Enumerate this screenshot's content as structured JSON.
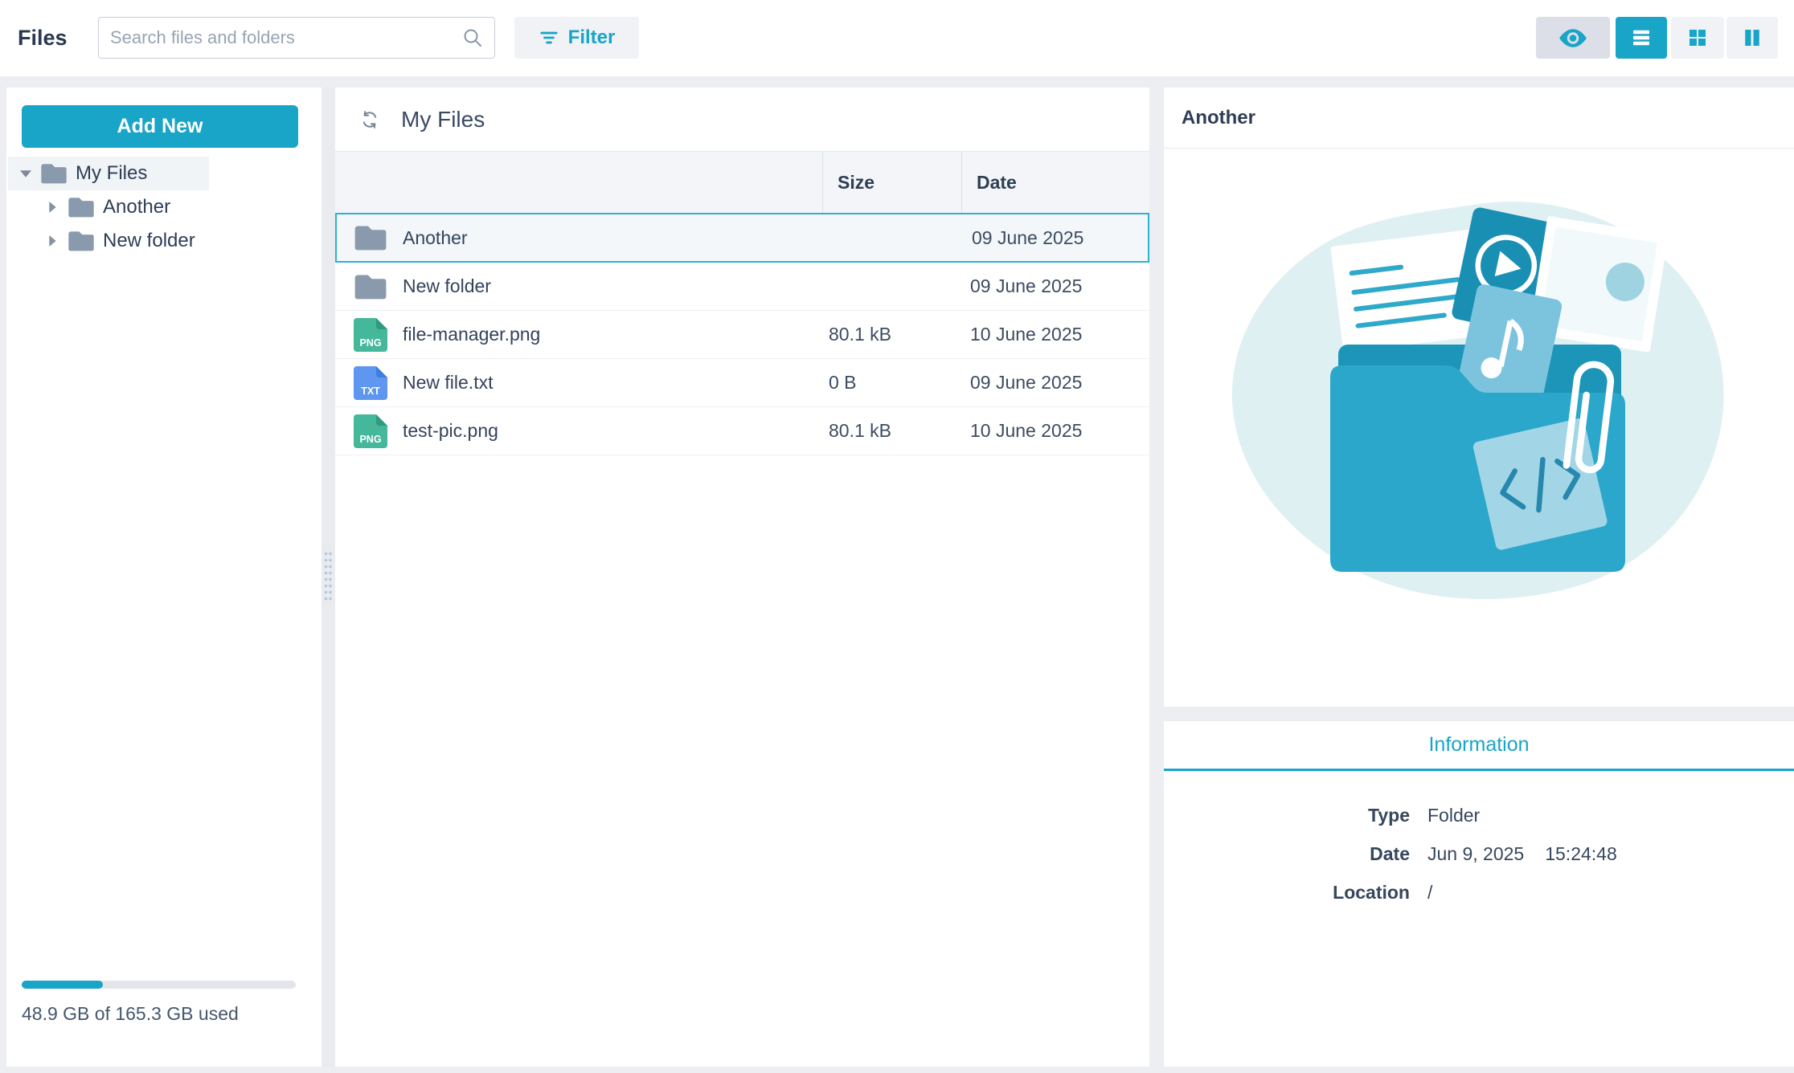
{
  "app": {
    "title": "Files"
  },
  "topbar": {
    "search": {
      "placeholder": "Search files and folders",
      "icon": "search-icon"
    },
    "filter": {
      "label": "Filter",
      "icon": "filter-icon"
    },
    "view_buttons": [
      {
        "name": "preview-toggle",
        "icon": "eye-icon",
        "active": true
      },
      {
        "name": "list-view",
        "icon": "list-icon",
        "active": true
      },
      {
        "name": "grid-view",
        "icon": "grid-icon",
        "active": false
      },
      {
        "name": "column-view",
        "icon": "columns-icon",
        "active": false
      }
    ]
  },
  "sidebar": {
    "add_new_label": "Add New",
    "tree": [
      {
        "label": "My Files",
        "level": 0,
        "expanded": true,
        "selected": true,
        "icon": "folder-icon"
      },
      {
        "label": "Another",
        "level": 1,
        "expanded": false,
        "selected": false,
        "icon": "folder-icon"
      },
      {
        "label": "New folder",
        "level": 1,
        "expanded": false,
        "selected": false,
        "icon": "folder-icon"
      }
    ],
    "storage": {
      "used_percent": 29.6,
      "label": "48.9 GB of 165.3 GB used"
    }
  },
  "filelist": {
    "title": "My Files",
    "columns": {
      "size": "Size",
      "date": "Date"
    },
    "rows": [
      {
        "name": "Another",
        "kind": "folder",
        "badge": "",
        "size": "",
        "date": "09 June 2025",
        "selected": true
      },
      {
        "name": "New folder",
        "kind": "folder",
        "badge": "",
        "size": "",
        "date": "09 June 2025",
        "selected": false
      },
      {
        "name": "file-manager.png",
        "kind": "file",
        "badge": "PNG",
        "size": "80.1 kB",
        "date": "10 June 2025",
        "selected": false
      },
      {
        "name": "New file.txt",
        "kind": "file",
        "badge": "TXT",
        "size": "0 B",
        "date": "09 June 2025",
        "selected": false
      },
      {
        "name": "test-pic.png",
        "kind": "file",
        "badge": "PNG",
        "size": "80.1 kB",
        "date": "10 June 2025",
        "selected": false
      }
    ]
  },
  "details": {
    "title": "Another",
    "tab_label": "Information",
    "info": [
      {
        "label": "Type",
        "value": "Folder",
        "extra": ""
      },
      {
        "label": "Date",
        "value": "Jun 9, 2025",
        "extra": "15:24:48"
      },
      {
        "label": "Location",
        "value": "/",
        "extra": ""
      }
    ]
  },
  "colors": {
    "accent": "#18a5c7",
    "selected_border": "#2db2d0",
    "text_dark": "#2d3d53",
    "text_muted": "#45566c",
    "page_bg": "#eceef1",
    "png_icon": "#45b89b",
    "png_icon_fold": "#2e9a80",
    "txt_icon": "#5f96ef",
    "txt_icon_fold": "#3b7fe0",
    "folder_icon": "#8a9aad"
  }
}
